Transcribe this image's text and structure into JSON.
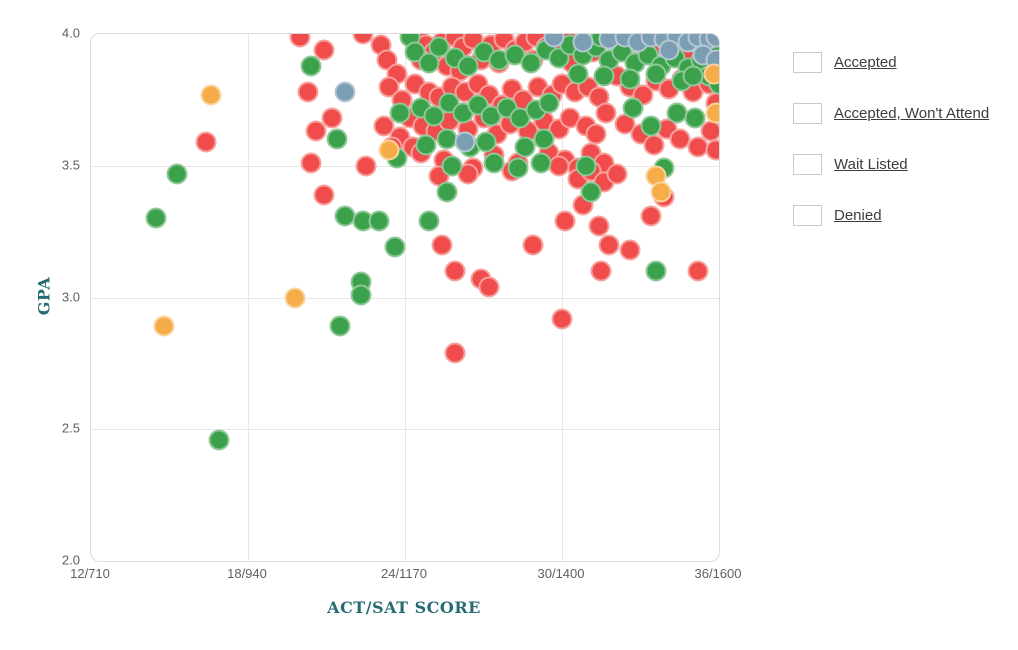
{
  "chart_data": {
    "type": "scatter",
    "title": "",
    "xlabel": "ACT/SAT SCORE",
    "ylabel": "GPA",
    "xlim": [
      12,
      36
    ],
    "ylim": [
      2.0,
      4.0
    ],
    "grid": true,
    "legend_position": "right",
    "x_ticks": [
      {
        "value": 12,
        "label": "12/710"
      },
      {
        "value": 18,
        "label": "18/940"
      },
      {
        "value": 24,
        "label": "24/1170"
      },
      {
        "value": 30,
        "label": "30/1400"
      },
      {
        "value": 36,
        "label": "36/1600"
      }
    ],
    "y_ticks": [
      {
        "value": 4.0,
        "label": "4.0"
      },
      {
        "value": 3.5,
        "label": "3.5"
      },
      {
        "value": 3.0,
        "label": "3.0"
      },
      {
        "value": 2.5,
        "label": "2.5"
      },
      {
        "value": 2.0,
        "label": "2.0"
      }
    ],
    "series": [
      {
        "name": "Accepted",
        "color": "#3ba24b",
        "rim": "#8fc897",
        "points": [
          [
            14.5,
            3.3
          ],
          [
            15.3,
            3.47
          ],
          [
            16.9,
            2.46
          ],
          [
            20.4,
            3.88
          ],
          [
            21.4,
            3.6
          ],
          [
            21.5,
            2.89
          ],
          [
            21.7,
            3.31
          ],
          [
            22.4,
            3.29
          ],
          [
            23.0,
            3.29
          ],
          [
            22.3,
            3.06
          ],
          [
            22.3,
            3.01
          ],
          [
            23.6,
            3.19
          ],
          [
            23.7,
            3.53
          ],
          [
            23.8,
            3.7
          ],
          [
            24.2,
            3.99
          ],
          [
            24.9,
            3.29
          ],
          [
            25.6,
            3.4
          ],
          [
            25.8,
            3.5
          ],
          [
            27.4,
            3.51
          ],
          [
            28.3,
            3.49
          ],
          [
            29.2,
            3.51
          ],
          [
            24.4,
            3.93
          ],
          [
            24.9,
            3.89
          ],
          [
            25.3,
            3.95
          ],
          [
            25.9,
            3.91
          ],
          [
            26.4,
            3.88
          ],
          [
            27.0,
            3.93
          ],
          [
            27.6,
            3.9
          ],
          [
            28.2,
            3.92
          ],
          [
            28.8,
            3.89
          ],
          [
            29.4,
            3.94
          ],
          [
            29.9,
            3.91
          ],
          [
            24.6,
            3.72
          ],
          [
            25.1,
            3.69
          ],
          [
            25.7,
            3.74
          ],
          [
            26.2,
            3.7
          ],
          [
            26.8,
            3.73
          ],
          [
            27.3,
            3.69
          ],
          [
            27.9,
            3.72
          ],
          [
            28.4,
            3.68
          ],
          [
            29.0,
            3.71
          ],
          [
            29.5,
            3.74
          ],
          [
            24.8,
            3.58
          ],
          [
            25.6,
            3.6
          ],
          [
            26.5,
            3.57
          ],
          [
            27.1,
            3.59
          ],
          [
            28.6,
            3.57
          ],
          [
            29.3,
            3.6
          ],
          [
            30.3,
            3.96
          ],
          [
            30.8,
            3.92
          ],
          [
            31.3,
            3.95
          ],
          [
            31.8,
            3.9
          ],
          [
            32.3,
            3.93
          ],
          [
            32.8,
            3.89
          ],
          [
            33.3,
            3.92
          ],
          [
            33.8,
            3.88
          ],
          [
            34.3,
            3.91
          ],
          [
            34.8,
            3.87
          ],
          [
            35.3,
            3.9
          ],
          [
            35.8,
            3.93
          ],
          [
            30.6,
            3.85
          ],
          [
            31.6,
            3.84
          ],
          [
            32.6,
            3.83
          ],
          [
            33.6,
            3.85
          ],
          [
            34.6,
            3.82
          ],
          [
            35.6,
            3.84
          ],
          [
            36.0,
            3.81
          ],
          [
            31.1,
            3.4
          ],
          [
            33.9,
            3.49
          ],
          [
            33.6,
            3.1
          ],
          [
            32.7,
            3.72
          ],
          [
            33.4,
            3.65
          ],
          [
            34.4,
            3.7
          ],
          [
            35.1,
            3.68
          ],
          [
            31.5,
            3.99
          ],
          [
            33.0,
            3.98
          ],
          [
            30.9,
            3.5
          ],
          [
            35.0,
            3.84
          ]
        ]
      },
      {
        "name": "Accepted, Won't Attend",
        "color": "#7c9eb2",
        "rim": "#b5c9d4",
        "points": [
          [
            21.7,
            3.78
          ],
          [
            26.3,
            3.59
          ],
          [
            29.7,
            3.99
          ],
          [
            30.8,
            3.97
          ],
          [
            31.8,
            3.98
          ],
          [
            32.4,
            3.99
          ],
          [
            32.9,
            3.97
          ],
          [
            33.4,
            3.99
          ],
          [
            33.9,
            3.98
          ],
          [
            34.4,
            3.99
          ],
          [
            34.8,
            3.97
          ],
          [
            35.2,
            3.99
          ],
          [
            35.6,
            3.98
          ],
          [
            35.9,
            3.99
          ],
          [
            34.1,
            3.94
          ],
          [
            35.4,
            3.92
          ],
          [
            35.9,
            3.9
          ]
        ]
      },
      {
        "name": "Wait Listed",
        "color": "#f5ac49",
        "rim": "#fad49c",
        "points": [
          [
            16.6,
            3.77
          ],
          [
            14.8,
            2.89
          ],
          [
            19.8,
            3.0
          ],
          [
            23.4,
            3.56
          ],
          [
            33.6,
            3.46
          ],
          [
            33.8,
            3.4
          ],
          [
            35.8,
            3.85
          ],
          [
            35.9,
            3.7
          ]
        ]
      },
      {
        "name": "Denied",
        "color": "#f04c4c",
        "rim": "#f7a19d",
        "points": [
          [
            16.4,
            3.59
          ],
          [
            20.0,
            3.99
          ],
          [
            20.9,
            3.94
          ],
          [
            20.3,
            3.78
          ],
          [
            21.2,
            3.68
          ],
          [
            20.6,
            3.63
          ],
          [
            20.9,
            3.39
          ],
          [
            20.4,
            3.51
          ],
          [
            22.4,
            4.0
          ],
          [
            22.5,
            3.5
          ],
          [
            23.1,
            3.96
          ],
          [
            23.3,
            3.9
          ],
          [
            23.7,
            3.85
          ],
          [
            23.4,
            3.8
          ],
          [
            23.9,
            3.75
          ],
          [
            23.2,
            3.65
          ],
          [
            23.8,
            3.61
          ],
          [
            23.5,
            3.57
          ],
          [
            24.3,
            3.57
          ],
          [
            24.5,
            3.99
          ],
          [
            24.8,
            3.96
          ],
          [
            25.1,
            3.93
          ],
          [
            24.6,
            3.9
          ],
          [
            25.4,
            3.97
          ],
          [
            25.9,
            3.99
          ],
          [
            26.2,
            3.95
          ],
          [
            26.6,
            3.98
          ],
          [
            25.6,
            3.88
          ],
          [
            26.1,
            3.86
          ],
          [
            26.9,
            3.9
          ],
          [
            27.3,
            3.96
          ],
          [
            27.8,
            3.98
          ],
          [
            28.2,
            3.94
          ],
          [
            27.6,
            3.89
          ],
          [
            28.6,
            3.97
          ],
          [
            29.0,
            3.99
          ],
          [
            29.4,
            3.95
          ],
          [
            28.9,
            3.9
          ],
          [
            29.8,
            3.93
          ],
          [
            30.2,
            3.98
          ],
          [
            30.7,
            3.95
          ],
          [
            31.2,
            3.93
          ],
          [
            30.4,
            3.89
          ],
          [
            24.4,
            3.81
          ],
          [
            24.9,
            3.78
          ],
          [
            25.3,
            3.76
          ],
          [
            25.8,
            3.8
          ],
          [
            26.3,
            3.78
          ],
          [
            26.8,
            3.81
          ],
          [
            27.2,
            3.77
          ],
          [
            27.7,
            3.73
          ],
          [
            28.1,
            3.79
          ],
          [
            28.5,
            3.75
          ],
          [
            29.1,
            3.8
          ],
          [
            29.6,
            3.77
          ],
          [
            30.0,
            3.81
          ],
          [
            30.5,
            3.78
          ],
          [
            31.0,
            3.8
          ],
          [
            31.4,
            3.76
          ],
          [
            24.2,
            3.68
          ],
          [
            24.7,
            3.65
          ],
          [
            25.2,
            3.63
          ],
          [
            25.7,
            3.67
          ],
          [
            26.4,
            3.64
          ],
          [
            27.0,
            3.68
          ],
          [
            27.5,
            3.62
          ],
          [
            28.0,
            3.66
          ],
          [
            28.7,
            3.63
          ],
          [
            29.3,
            3.67
          ],
          [
            29.9,
            3.64
          ],
          [
            30.3,
            3.68
          ],
          [
            30.9,
            3.65
          ],
          [
            31.3,
            3.62
          ],
          [
            24.6,
            3.55
          ],
          [
            25.5,
            3.52
          ],
          [
            26.6,
            3.49
          ],
          [
            27.4,
            3.54
          ],
          [
            28.3,
            3.51
          ],
          [
            29.5,
            3.55
          ],
          [
            30.1,
            3.52
          ],
          [
            30.6,
            3.49
          ],
          [
            31.1,
            3.55
          ],
          [
            31.6,
            3.51
          ],
          [
            25.3,
            3.46
          ],
          [
            26.4,
            3.47
          ],
          [
            28.1,
            3.48
          ],
          [
            29.9,
            3.5
          ],
          [
            31.9,
            3.98
          ],
          [
            32.3,
            3.94
          ],
          [
            32.8,
            3.97
          ],
          [
            33.3,
            3.92
          ],
          [
            33.8,
            3.96
          ],
          [
            34.3,
            3.98
          ],
          [
            34.7,
            3.93
          ],
          [
            35.1,
            3.97
          ],
          [
            35.5,
            3.94
          ],
          [
            35.9,
            3.98
          ],
          [
            36.0,
            3.88
          ],
          [
            32.1,
            3.84
          ],
          [
            32.6,
            3.8
          ],
          [
            33.1,
            3.77
          ],
          [
            33.6,
            3.82
          ],
          [
            34.1,
            3.79
          ],
          [
            34.6,
            3.83
          ],
          [
            35.0,
            3.78
          ],
          [
            35.6,
            3.81
          ],
          [
            35.9,
            3.74
          ],
          [
            31.7,
            3.7
          ],
          [
            32.4,
            3.66
          ],
          [
            33.0,
            3.62
          ],
          [
            33.5,
            3.58
          ],
          [
            34.0,
            3.64
          ],
          [
            34.5,
            3.6
          ],
          [
            35.2,
            3.57
          ],
          [
            35.7,
            3.63
          ],
          [
            35.9,
            3.56
          ],
          [
            30.6,
            3.45
          ],
          [
            31.1,
            3.48
          ],
          [
            31.6,
            3.44
          ],
          [
            32.1,
            3.47
          ],
          [
            30.8,
            3.35
          ],
          [
            31.4,
            3.27
          ],
          [
            33.9,
            3.38
          ],
          [
            33.4,
            3.31
          ],
          [
            31.8,
            3.2
          ],
          [
            32.6,
            3.18
          ],
          [
            31.5,
            3.1
          ],
          [
            35.2,
            3.1
          ],
          [
            30.1,
            3.29
          ],
          [
            28.9,
            3.2
          ],
          [
            25.4,
            3.2
          ],
          [
            25.9,
            3.1
          ],
          [
            26.9,
            3.07
          ],
          [
            27.2,
            3.04
          ],
          [
            25.9,
            2.79
          ],
          [
            30.0,
            2.92
          ]
        ]
      }
    ]
  }
}
